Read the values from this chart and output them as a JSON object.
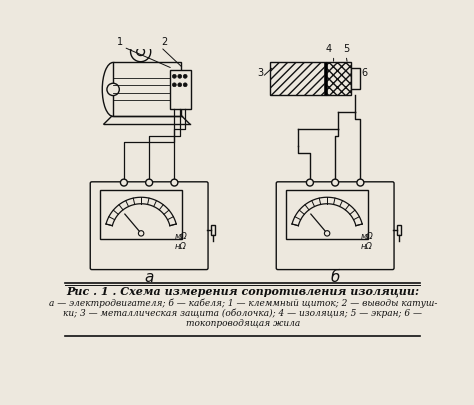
{
  "title": "Рис . 1 . Схема измерения сопротивления изоляции:",
  "caption_line1": "а — электродвигателя; б — кабеля; 1 — клеммный щиток; 2 — выводы катуш-",
  "caption_line2": "ки; 3 — металлическая защита (оболочка); 4 — изоляция; 5 — экран; 6 —",
  "caption_line3": "токопроводящая жила",
  "label_a": "а",
  "label_b": "б",
  "bg_color": "#ede8de",
  "line_color": "#111111"
}
